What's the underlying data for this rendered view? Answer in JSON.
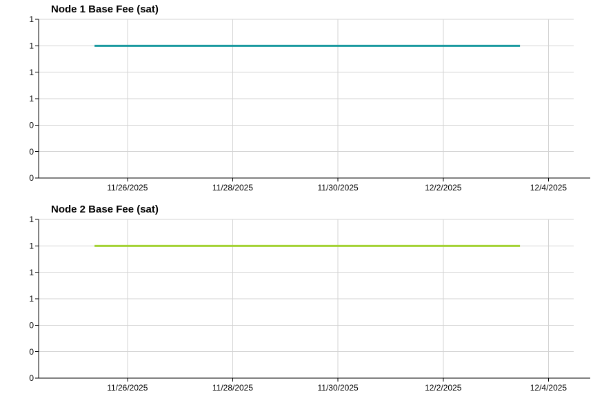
{
  "page": {
    "background": "#ffffff"
  },
  "styles": {
    "grid_color": "#d3d3d3",
    "axis_color": "#000000",
    "text_color": "#000000",
    "node1_line_color": "#17989E",
    "node2_line_color": "#A2D232"
  },
  "chart_data": [
    {
      "type": "line",
      "title": "Node 1 Base Fee (sat)",
      "legend_position": "none",
      "grid": true,
      "x_axis": {
        "min": "11/24/2025 07:30",
        "max": "12/4/2025 11:30",
        "ticks": [
          {
            "label": "11/26/2025",
            "value": "11/26/2025 00:00"
          },
          {
            "label": "11/28/2025",
            "value": "11/28/2025 00:00"
          },
          {
            "label": "11/30/2025",
            "value": "11/30/2025 00:00"
          },
          {
            "label": "12/2/2025",
            "value": "12/2/2025 00:00"
          },
          {
            "label": "12/4/2025",
            "value": "12/4/2025 00:00"
          }
        ]
      },
      "y_axis": {
        "min": 0,
        "max": 1.2,
        "ticks": [
          {
            "label": "1",
            "value": 1.2
          },
          {
            "label": "1",
            "value": 1.0
          },
          {
            "label": "1",
            "value": 0.8
          },
          {
            "label": "1",
            "value": 0.6
          },
          {
            "label": "0",
            "value": 0.4
          },
          {
            "label": "0",
            "value": 0.2
          },
          {
            "label": "0",
            "value": 0.0
          }
        ]
      },
      "series": [
        {
          "name": "Node 1 Base Fee",
          "color": "#17989E",
          "constant_value": 1,
          "points": [
            {
              "x": "11/25/2025 09:00",
              "y": 1
            },
            {
              "x": "12/3/2025 11:00",
              "y": 1
            }
          ]
        }
      ]
    },
    {
      "type": "line",
      "title": "Node 2 Base Fee (sat)",
      "legend_position": "none",
      "grid": true,
      "x_axis": {
        "min": "11/24/2025 07:30",
        "max": "12/4/2025 11:30",
        "ticks": [
          {
            "label": "11/26/2025",
            "value": "11/26/2025 00:00"
          },
          {
            "label": "11/28/2025",
            "value": "11/28/2025 00:00"
          },
          {
            "label": "11/30/2025",
            "value": "11/30/2025 00:00"
          },
          {
            "label": "12/2/2025",
            "value": "12/2/2025 00:00"
          },
          {
            "label": "12/4/2025",
            "value": "12/4/2025 00:00"
          }
        ]
      },
      "y_axis": {
        "min": 0,
        "max": 1.2,
        "ticks": [
          {
            "label": "1",
            "value": 1.2
          },
          {
            "label": "1",
            "value": 1.0
          },
          {
            "label": "1",
            "value": 0.8
          },
          {
            "label": "1",
            "value": 0.6
          },
          {
            "label": "0",
            "value": 0.4
          },
          {
            "label": "0",
            "value": 0.2
          },
          {
            "label": "0",
            "value": 0.0
          }
        ]
      },
      "series": [
        {
          "name": "Node 2 Base Fee",
          "color": "#A2D232",
          "constant_value": 1,
          "points": [
            {
              "x": "11/25/2025 09:00",
              "y": 1
            },
            {
              "x": "12/3/2025 11:00",
              "y": 1
            }
          ]
        }
      ]
    }
  ]
}
